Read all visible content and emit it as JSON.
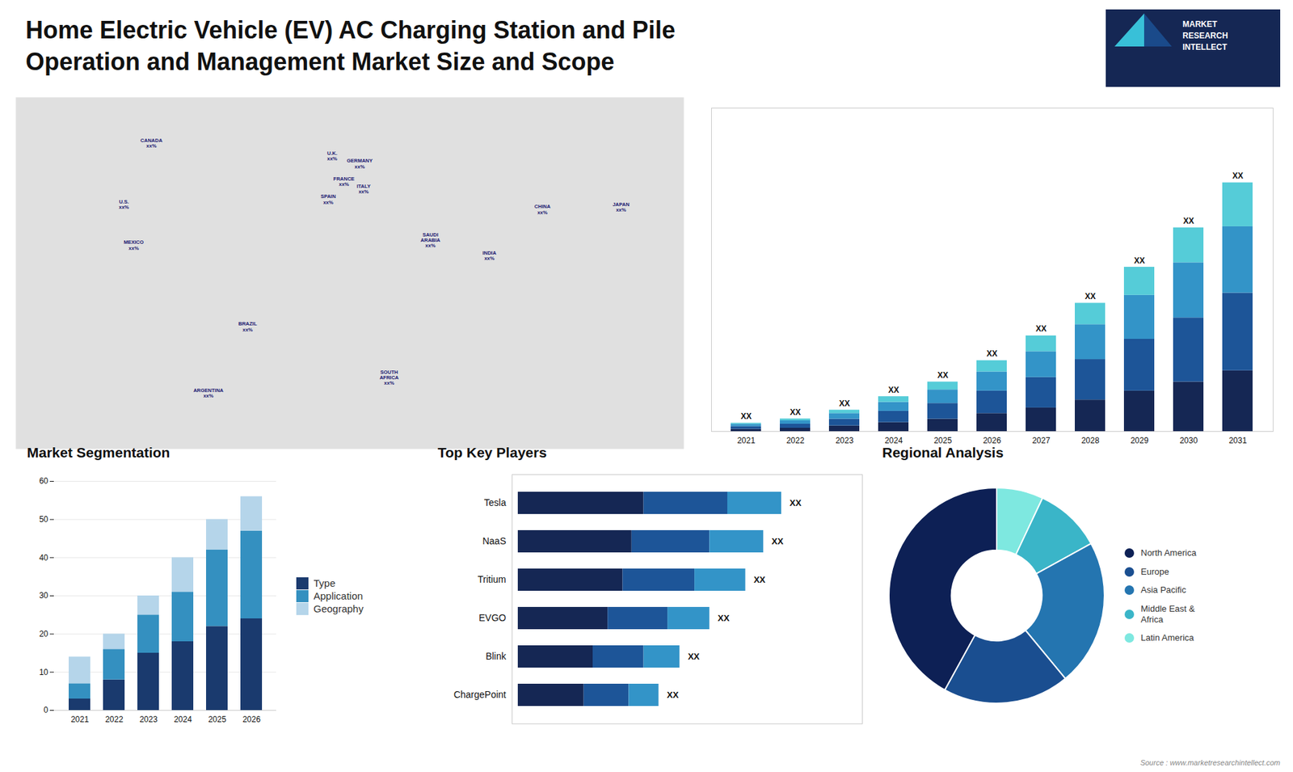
{
  "title": "Home Electric Vehicle (EV) AC Charging Station and Pile\nOperation and Management Market Size and Scope",
  "annotations": [
    "MARKET\nRESEARCH\nINTELLECT",
    "Source : www.marketresearchintellect.com"
  ],
  "chart_data": [
    {
      "type": "map",
      "xlim": [
        -165,
        175
      ],
      "ylim": [
        -58,
        80
      ],
      "tick_labels": false,
      "annotations": [
        {
          "text": "U.S.\nxx%",
          "x": -110,
          "y": 38
        },
        {
          "text": "CANADA\nxx%",
          "x": -96,
          "y": 62
        },
        {
          "text": "MEXICO\nxx%",
          "x": -105,
          "y": 22
        },
        {
          "text": "BRAZIL\nxx%",
          "x": -47,
          "y": -10
        },
        {
          "text": "ARGENTINA\nxx%",
          "x": -67,
          "y": -36
        },
        {
          "text": "U.K.\nxx%",
          "x": -4,
          "y": 57
        },
        {
          "text": "FRANCE\nxx%",
          "x": 2,
          "y": 47
        },
        {
          "text": "SPAIN\nxx%",
          "x": -6,
          "y": 40
        },
        {
          "text": "GERMANY\nxx%",
          "x": 10,
          "y": 54
        },
        {
          "text": "ITALY\nxx%",
          "x": 12,
          "y": 44
        },
        {
          "text": "SAUDI\nARABIA\nxx%",
          "x": 46,
          "y": 24
        },
        {
          "text": "SOUTH\nAFRICA\nxx%",
          "x": 25,
          "y": -30
        },
        {
          "text": "CHINA\nxx%",
          "x": 103,
          "y": 36
        },
        {
          "text": "INDIA\nxx%",
          "x": 76,
          "y": 18
        },
        {
          "text": "JAPAN\nxx%",
          "x": 143,
          "y": 37
        }
      ]
    },
    {
      "type": "bar",
      "stacked": true,
      "categories": [
        "2021",
        "2022",
        "2023",
        "2024",
        "2025",
        "2026",
        "2027",
        "2028",
        "2029",
        "2030",
        "2031"
      ],
      "series": [
        {
          "color": "#152754",
          "values": [
            1.0,
            1.5,
            2.5,
            4.0,
            5.5,
            8.0,
            10.5,
            14.0,
            18.0,
            22.0,
            27.0
          ]
        },
        {
          "color": "#1d5598",
          "values": [
            1.2,
            1.8,
            3.0,
            5.0,
            7.0,
            10.0,
            13.5,
            18.0,
            23.0,
            28.5,
            34.5
          ]
        },
        {
          "color": "#3394c8",
          "values": [
            1.0,
            1.5,
            2.5,
            4.0,
            6.0,
            8.5,
            11.5,
            15.5,
            19.5,
            24.5,
            29.5
          ]
        },
        {
          "color": "#55ccd8",
          "values": [
            0.5,
            0.8,
            1.5,
            2.5,
            3.5,
            5.0,
            7.0,
            9.5,
            12.5,
            15.5,
            19.5
          ]
        }
      ],
      "ylim": [
        0,
        143.65
      ],
      "tick_labels": "x",
      "annotations": [
        "XX",
        "XX",
        "XX",
        "XX",
        "XX",
        "XX",
        "XX",
        "XX",
        "XX",
        "XX",
        "XX"
      ]
    },
    {
      "type": "bar",
      "title": "Market Segmentation",
      "stacked": true,
      "categories": [
        "2021",
        "2022",
        "2023",
        "2024",
        "2025",
        "2026"
      ],
      "series": [
        {
          "name": "Type",
          "color": "#1a3a6e",
          "values": [
            3,
            8,
            15,
            18,
            22,
            24
          ]
        },
        {
          "name": "Application",
          "color": "#3490c0",
          "values": [
            4,
            8,
            10,
            13,
            20,
            23
          ]
        },
        {
          "name": "Geography",
          "color": "#b5d5ea",
          "values": [
            7,
            4,
            5,
            9,
            8,
            9
          ]
        }
      ],
      "ylim": [
        0,
        60
      ],
      "yticks": [
        0,
        10,
        20,
        30,
        40,
        50,
        60
      ],
      "grid": true,
      "legend": "right"
    },
    {
      "type": "bar",
      "title": "Top Key Players",
      "orientation": "horizontal",
      "stacked": true,
      "categories": [
        "Tesla",
        "NaaS",
        "Tritium",
        "EVGO",
        "Blink",
        "ChargePoint"
      ],
      "series": [
        {
          "color": "#152754",
          "values": [
            0.42,
            0.38,
            0.35,
            0.3,
            0.25,
            0.22
          ]
        },
        {
          "color": "#1d5598",
          "values": [
            0.28,
            0.26,
            0.24,
            0.2,
            0.17,
            0.15
          ]
        },
        {
          "color": "#3394c8",
          "values": [
            0.18,
            0.18,
            0.17,
            0.14,
            0.12,
            0.1
          ]
        }
      ],
      "xlim": [
        -0.02,
        1.15
      ],
      "tick_labels": "y",
      "annotations": [
        "XX",
        "XX",
        "XX",
        "XX",
        "XX",
        "XX"
      ]
    },
    {
      "type": "pie",
      "title": "Regional Analysis",
      "categories": [
        "Latin America",
        "Middle East &\nAfrica",
        "Asia Pacific",
        "Europe",
        "North America"
      ],
      "values": [
        7,
        10,
        22,
        19,
        42
      ],
      "colors": [
        "#7ee8e0",
        "#3ab5c8",
        "#2475b0",
        "#1a4e90",
        "#0d2055"
      ],
      "legend": "right"
    }
  ]
}
